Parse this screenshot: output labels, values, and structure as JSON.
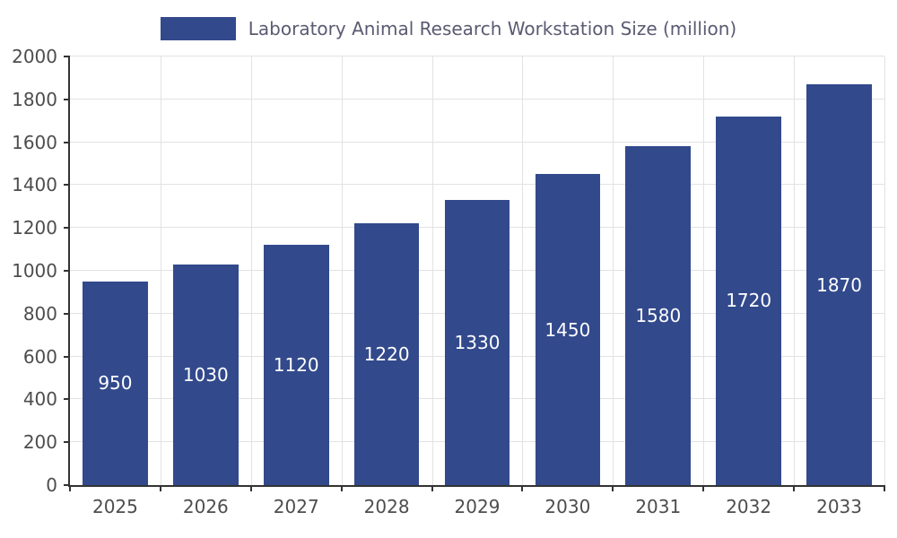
{
  "chart_data": {
    "type": "bar",
    "title": "Laboratory Animal Research Workstation Size (million)",
    "categories": [
      "2025",
      "2026",
      "2027",
      "2028",
      "2029",
      "2030",
      "2031",
      "2032",
      "2033"
    ],
    "values": [
      950,
      1030,
      1120,
      1220,
      1330,
      1450,
      1580,
      1720,
      1870
    ],
    "xlabel": "",
    "ylabel": "",
    "ylim": [
      0,
      2000
    ],
    "yticks": [
      0,
      200,
      400,
      600,
      800,
      1000,
      1200,
      1400,
      1600,
      1800,
      2000
    ],
    "grid": true,
    "legend_position": "top",
    "colors": {
      "bar_fill": "#32498c",
      "value_label": "#ffffff",
      "axis_line": "#333333",
      "gridline": "#e2e2e2",
      "tick_text": "#4d4d4d",
      "title_text": "#5a5a72"
    }
  }
}
